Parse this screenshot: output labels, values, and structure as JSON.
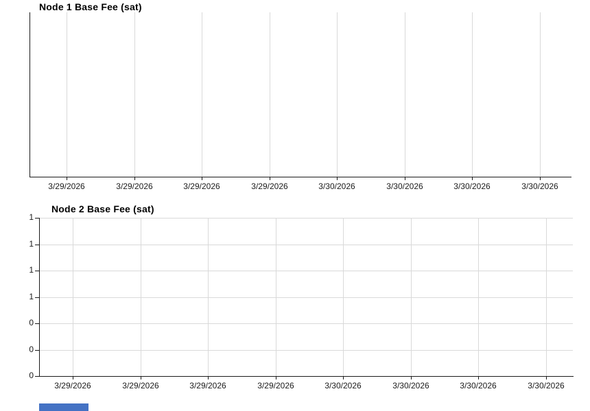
{
  "chart_data": [
    {
      "type": "line",
      "title": "Node 1 Base Fee (sat)",
      "x_tick_labels": [
        "3/29/2026",
        "3/29/2026",
        "3/29/2026",
        "3/29/2026",
        "3/30/2026",
        "3/30/2026",
        "3/30/2026",
        "3/30/2026"
      ],
      "y_tick_labels": [],
      "series": [],
      "grid": "vertical",
      "legend": "none"
    },
    {
      "type": "line",
      "title": "Node 2 Base Fee (sat)",
      "x_tick_labels": [
        "3/29/2026",
        "3/29/2026",
        "3/29/2026",
        "3/29/2026",
        "3/30/2026",
        "3/30/2026",
        "3/30/2026",
        "3/30/2026"
      ],
      "y_tick_labels": [
        "1",
        "1",
        "1",
        "1",
        "0",
        "0",
        "0"
      ],
      "ylim": [
        0,
        1
      ],
      "series": [],
      "grid": "both",
      "legend": "none"
    }
  ],
  "colors": {
    "axis": "#1a1a1a",
    "gridline": "#d9d9d9",
    "tick_text": "#1a1a1a",
    "title_text": "#000000",
    "background": "#ffffff",
    "highlight_blue": "#4472c4"
  }
}
